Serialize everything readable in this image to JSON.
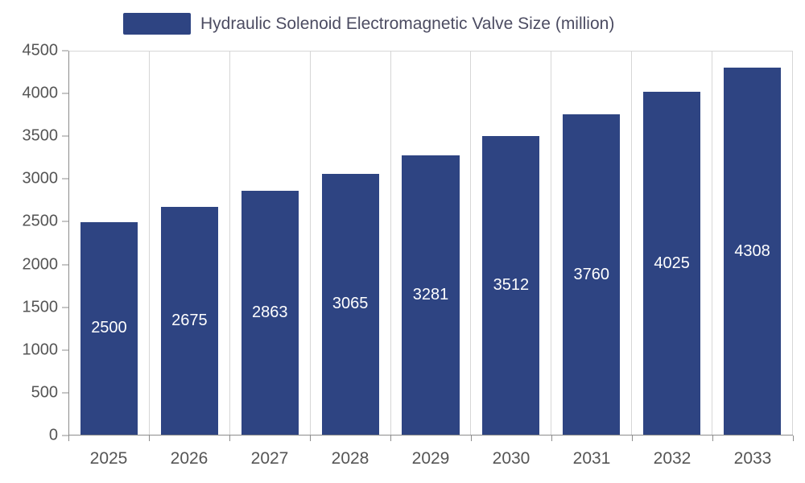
{
  "chart_data": {
    "type": "bar",
    "title": "Hydraulic Solenoid Electromagnetic Valve Size (million)",
    "categories": [
      "2025",
      "2026",
      "2027",
      "2028",
      "2029",
      "2030",
      "2031",
      "2032",
      "2033"
    ],
    "values": [
      2500,
      2675,
      2863,
      3065,
      3281,
      3512,
      3760,
      4025,
      4308
    ],
    "xlabel": "",
    "ylabel": "",
    "ylim": [
      0,
      4500
    ],
    "ytick_step": 500,
    "grid": "vertical",
    "legend_position": "top",
    "value_labels": "inside-center"
  },
  "colors": {
    "bar": "#2e4482",
    "title_text": "#4c4c62",
    "axis_label": "#555555",
    "axis_line": "#8c8c8c",
    "grid_line": "#d6d6d6",
    "value_label": "#ffffff",
    "background": "#ffffff"
  }
}
